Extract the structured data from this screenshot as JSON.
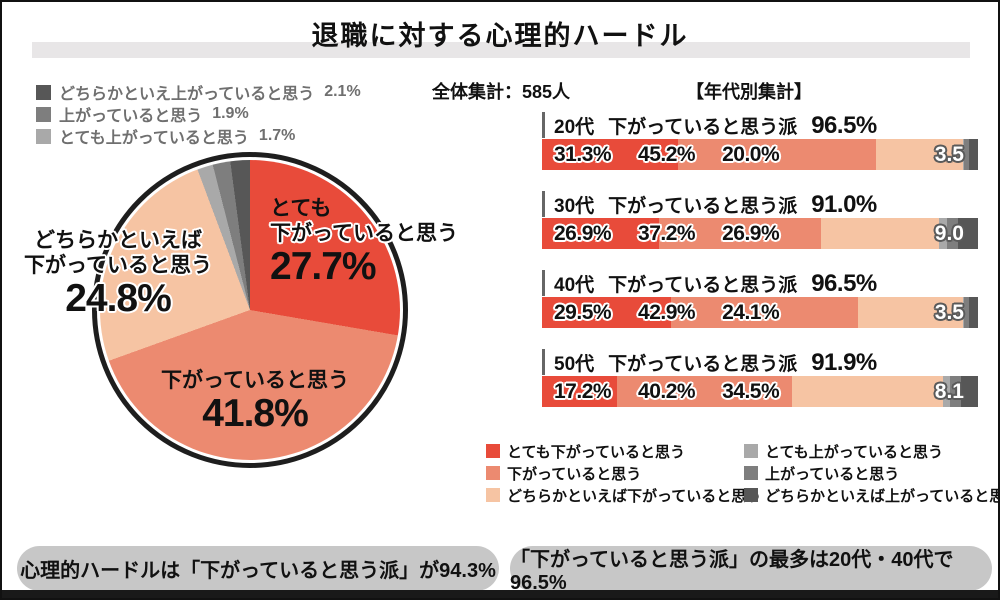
{
  "title": "退職に対する心理的ハードル",
  "overall_total_label": "全体集計：585人",
  "by_age_heading": "【年代別集計】",
  "colors": {
    "red": "#e84b3a",
    "salmon": "#ec8a70",
    "peach": "#f6c4a3",
    "gray_light": "#a9a9a9",
    "gray_mid": "#7e7e7e",
    "gray_dark": "#575757",
    "pill_bg": "#c7c7c7",
    "title_band": "#e8e6e7",
    "footer_band": "#191919"
  },
  "pie_side_legend": [
    {
      "label": "どちらかといえ上がっていると思う",
      "pct": "2.1%",
      "color": "#575757"
    },
    {
      "label": "上がっていると思う",
      "pct": "1.9%",
      "color": "#7e7e7e"
    },
    {
      "label": "とても上がっていると思う",
      "pct": "1.7%",
      "color": "#a9a9a9"
    }
  ],
  "pie_labels": {
    "very_down": {
      "line1": "とても",
      "line2": "下がっていると思う",
      "pct": "27.7%"
    },
    "somewhat_down": {
      "line1": "どちらかといえば",
      "line2": "下がっていると思う",
      "pct": "24.8%"
    },
    "down": {
      "line1": "下がっていると思う",
      "pct": "41.8%"
    }
  },
  "chart_data": [
    {
      "type": "pie",
      "title": "退職に対する心理的ハードル（全体集計：585人）",
      "slices": [
        {
          "label": "とても下がっていると思う",
          "value": 27.7,
          "color": "#e84b3a"
        },
        {
          "label": "下がっていると思う",
          "value": 41.8,
          "color": "#ec8a70"
        },
        {
          "label": "どちらかといえば下がっていると思う",
          "value": 24.8,
          "color": "#f6c4a3"
        },
        {
          "label": "とても上がっていると思う",
          "value": 1.7,
          "color": "#a9a9a9"
        },
        {
          "label": "上がっていると思う",
          "value": 1.9,
          "color": "#7e7e7e"
        },
        {
          "label": "どちらかといえ上がっていると思う",
          "value": 2.1,
          "color": "#575757"
        }
      ]
    },
    {
      "type": "bar",
      "subtype": "stacked-horizontal",
      "title": "年代別集計",
      "categories": [
        "20代",
        "30代",
        "40代",
        "50代"
      ],
      "series_labels": [
        "とても下がっていると思う",
        "下がっていると思う",
        "どちらかといえば下がっていると思う",
        "とても上がっていると思う",
        "上がっていると思う",
        "どちらかといえば上がっていると思う"
      ],
      "xlim": [
        0,
        100
      ],
      "rows": [
        {
          "age": "20代",
          "group_label": "下がっていると思う派",
          "group_pct": "96.5%",
          "down_values": [
            31.3,
            45.2,
            20.0
          ],
          "down_labels": [
            "31.3%",
            "45.2%",
            "20.0%"
          ],
          "up_total": 3.5,
          "up_total_label": "3.5",
          "up_values_est": [
            0.4,
            1.1,
            2.0
          ]
        },
        {
          "age": "30代",
          "group_label": "下がっていると思う派",
          "group_pct": "91.0%",
          "down_values": [
            26.9,
            37.2,
            26.9
          ],
          "down_labels": [
            "26.9%",
            "37.2%",
            "26.9%"
          ],
          "up_total": 9.0,
          "up_total_label": "9.0",
          "up_values_est": [
            1.9,
            2.6,
            4.5
          ]
        },
        {
          "age": "40代",
          "group_label": "下がっていると思う派",
          "group_pct": "96.5%",
          "down_values": [
            29.5,
            42.9,
            24.1
          ],
          "down_labels": [
            "29.5%",
            "42.9%",
            "24.1%"
          ],
          "up_total": 3.5,
          "up_total_label": "3.5",
          "up_values_est": [
            0.4,
            1.1,
            2.0
          ]
        },
        {
          "age": "50代",
          "group_label": "下がっていると思う派",
          "group_pct": "91.9%",
          "down_values": [
            17.2,
            40.2,
            34.5
          ],
          "down_labels": [
            "17.2%",
            "40.2%",
            "34.5%"
          ],
          "up_total": 8.1,
          "up_total_label": "8.1",
          "up_values_est": [
            1.7,
            2.4,
            4.0
          ]
        }
      ]
    }
  ],
  "bar_legend": {
    "down_items": [
      {
        "label": "とても下がっていると思う",
        "color": "#e84b3a"
      },
      {
        "label": "下がっていると思う",
        "color": "#ec8a70"
      },
      {
        "label": "どちらかといえば下がっていると思う",
        "color": "#f6c4a3"
      }
    ],
    "up_items": [
      {
        "label": "とても上がっていると思う",
        "color": "#a9a9a9"
      },
      {
        "label": "上がっていると思う",
        "color": "#7e7e7e"
      },
      {
        "label": "どちらかといえば上がっていると思う",
        "color": "#575757"
      }
    ]
  },
  "callouts": [
    {
      "text": "心理的ハードルは「下がっていると思う派」が94.3%"
    },
    {
      "text": "「下がっていると思う派」の最多は20代・40代で96.5%"
    }
  ]
}
